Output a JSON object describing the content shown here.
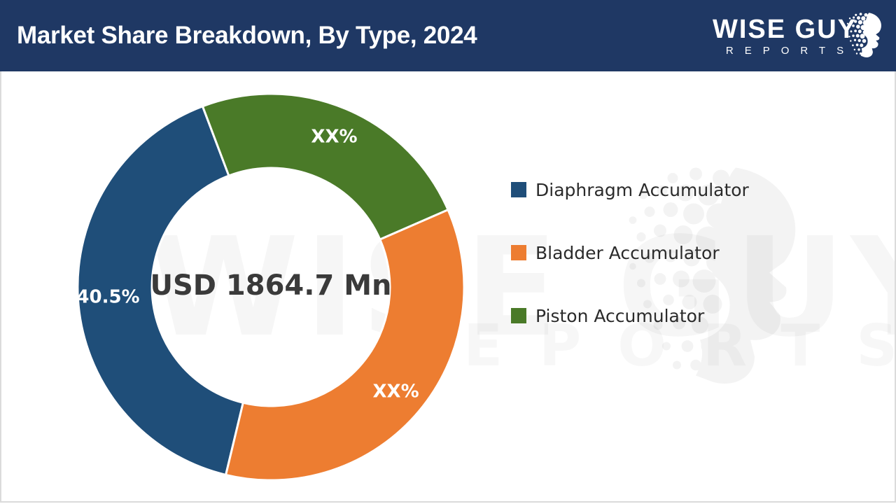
{
  "header": {
    "title": "Market Share Breakdown, By Type, 2024",
    "logo": {
      "line1": "WISE GUY",
      "line2": "REPORTS"
    }
  },
  "watermark": {
    "line1": "WISE GUY",
    "line2": "REPORTS"
  },
  "colors": {
    "header_bg": "#1F3864",
    "border": "#DBDBDB",
    "center_text": "#3A3A3A",
    "legend_text": "#2B2B2B",
    "segment_blue": "#1F4E79",
    "segment_orange": "#ED7D31",
    "segment_green": "#4A7A28"
  },
  "chart_data": {
    "type": "pie",
    "variant": "donut",
    "title": "Market Share Breakdown, By Type, 2024",
    "center_label": "USD 1864.7 Mn",
    "legend_position": "right",
    "start_angle_deg": 110.7,
    "direction": "counterclockwise",
    "outer_radius_px": 276,
    "inner_radius_px": 170,
    "label_radius_px": 233,
    "segments": [
      {
        "name": "Diaphragm Accumulator",
        "display_label": "40.5%",
        "percent_est": 40.5,
        "color": "#1F4E79"
      },
      {
        "name": "Bladder Accumulator",
        "display_label": "XX%",
        "percent_est": 35.3,
        "color": "#ED7D31"
      },
      {
        "name": "Piston Accumulator",
        "display_label": "XX%",
        "percent_est": 24.2,
        "color": "#4A7A28"
      }
    ],
    "legend": [
      "Diaphragm Accumulator",
      "Bladder Accumulator",
      "Piston Accumulator"
    ]
  }
}
